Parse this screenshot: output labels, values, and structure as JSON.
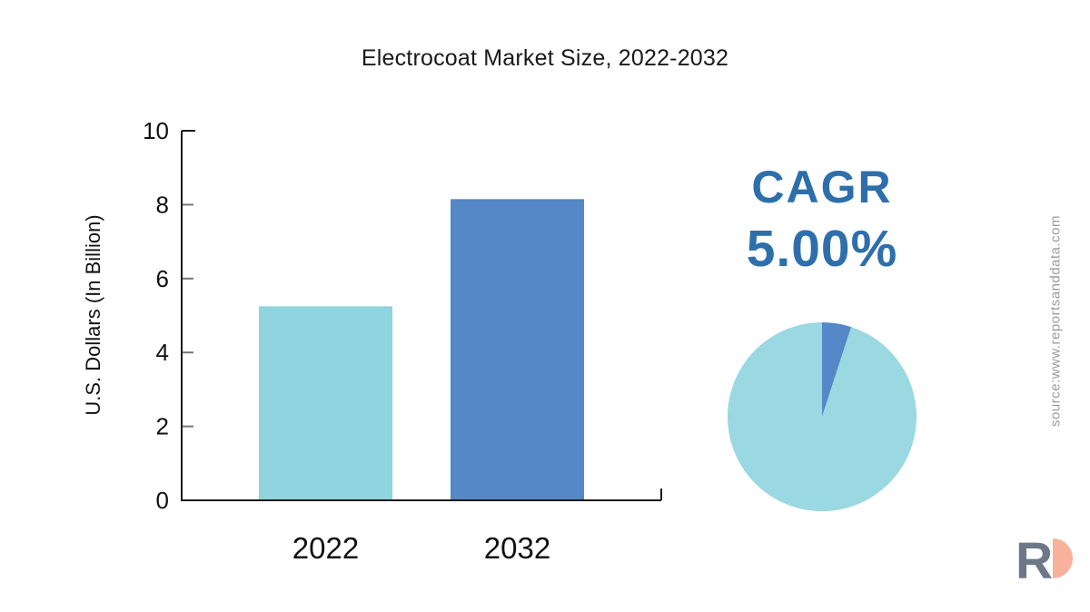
{
  "chart_data": [
    {
      "type": "bar",
      "title": "Electrocoat Market Size, 2022-2032",
      "categories": [
        "2022",
        "2032"
      ],
      "values": [
        5.25,
        8.15
      ],
      "xlabel": "",
      "ylabel": "U.S. Dollars (In Billion)",
      "ylim": [
        0,
        10
      ],
      "yticks": [
        0,
        2,
        4,
        6,
        8,
        10
      ],
      "bar_colors": [
        "#8fd4de",
        "#5588c6"
      ],
      "grid": false,
      "legend": false
    },
    {
      "type": "pie",
      "slices": [
        {
          "name": "cagr",
          "value": 5,
          "color": "#5588c6"
        },
        {
          "name": "remainder",
          "value": 95,
          "color": "#9ad8e2"
        }
      ],
      "annotation": "CAGR 5.00%"
    }
  ],
  "cagr": {
    "label": "CAGR",
    "value": "5.00%",
    "color": "#2e6fab"
  },
  "source": {
    "text": "source:www.reportsanddata.com"
  },
  "logo": {
    "letter": "R",
    "letter_color": "#6d7888",
    "mark_color": "#f8b19b"
  },
  "colors": {
    "axis": "#1a1a1a",
    "tick": "#777777",
    "text": "#111111",
    "background": "#ffffff"
  }
}
